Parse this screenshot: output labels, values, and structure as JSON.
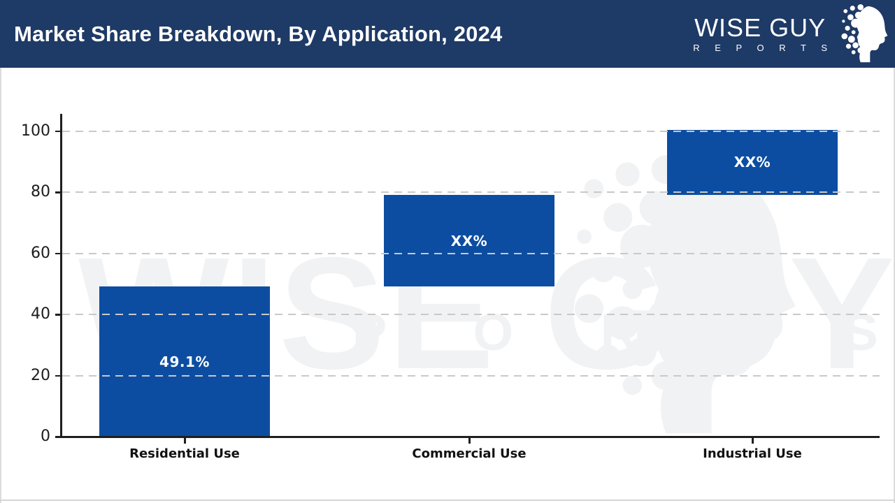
{
  "header": {
    "title": "Market Share Breakdown, By Application, 2024",
    "logo": {
      "brand_line1": "WISE GUY",
      "brand_line2": "R E P O R T S"
    }
  },
  "watermark": {
    "line1": "WISE GUY",
    "line2": "R E P O R T S"
  },
  "chart_data": {
    "type": "bar",
    "variant": "waterfall",
    "title": "Market Share Breakdown, By Application, 2024",
    "categories": [
      "Residential Use",
      "Commercial Use",
      "Industrial Use"
    ],
    "segments": [
      {
        "category": "Residential Use",
        "start": 0,
        "end": 49.1,
        "value_label": "49.1%"
      },
      {
        "category": "Commercial Use",
        "start": 49.1,
        "end": 79.1,
        "value_label": "XX%"
      },
      {
        "category": "Industrial Use",
        "start": 79.1,
        "end": 100.4,
        "value_label": "XX%"
      }
    ],
    "yticks": [
      0,
      20,
      40,
      60,
      80,
      100
    ],
    "ylim": [
      0,
      105
    ],
    "xlabel": "",
    "ylabel": "",
    "grid": "horizontal-dashed",
    "legend": "none",
    "colors": {
      "bar": "#0c4da2",
      "header_bg": "#1e3a66",
      "grid": "#c9c9c9",
      "axis": "#1f1f1f",
      "watermark": "#f1f2f4"
    }
  }
}
